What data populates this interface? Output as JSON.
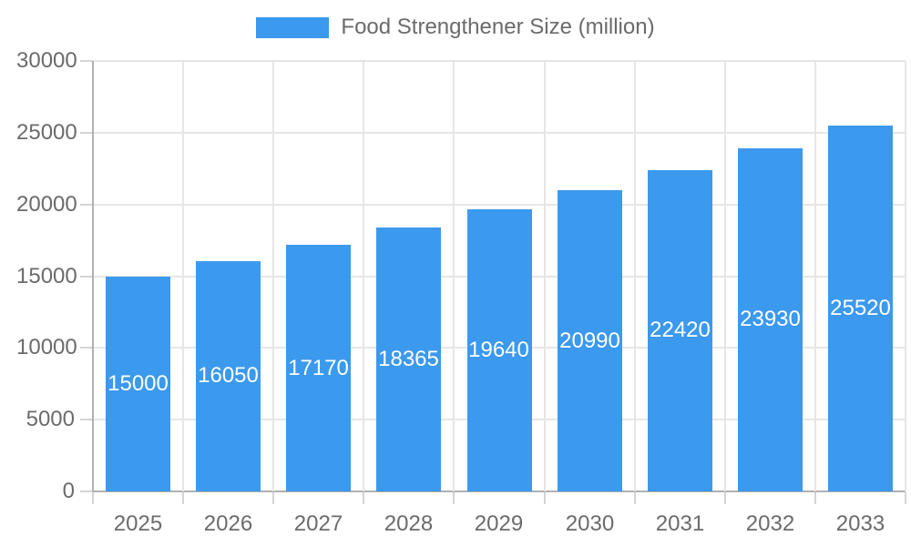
{
  "chart_data": {
    "type": "bar",
    "title": "",
    "legend_title": "Food Strengthener Size (million)",
    "legend_position": "top",
    "categories": [
      "2025",
      "2026",
      "2027",
      "2028",
      "2029",
      "2030",
      "2031",
      "2032",
      "2033"
    ],
    "values": [
      15000,
      16050,
      17170,
      18365,
      19640,
      20990,
      22420,
      23930,
      25520
    ],
    "xlabel": "",
    "ylabel": "",
    "ylim": [
      0,
      30000
    ],
    "ytick_step": 5000,
    "ytick_labels": [
      "0",
      "5000",
      "10000",
      "15000",
      "20000",
      "25000",
      "30000"
    ],
    "grid": true,
    "data_labels_inside_bars": true,
    "colors": {
      "bar": "#3b99ee",
      "grid": "#e6e6e6",
      "axis": "#b0b0b0",
      "tick": "#d4d4d4",
      "label_text": "#6b6b6b",
      "data_label": "#ffffff",
      "background": "#ffffff"
    }
  }
}
